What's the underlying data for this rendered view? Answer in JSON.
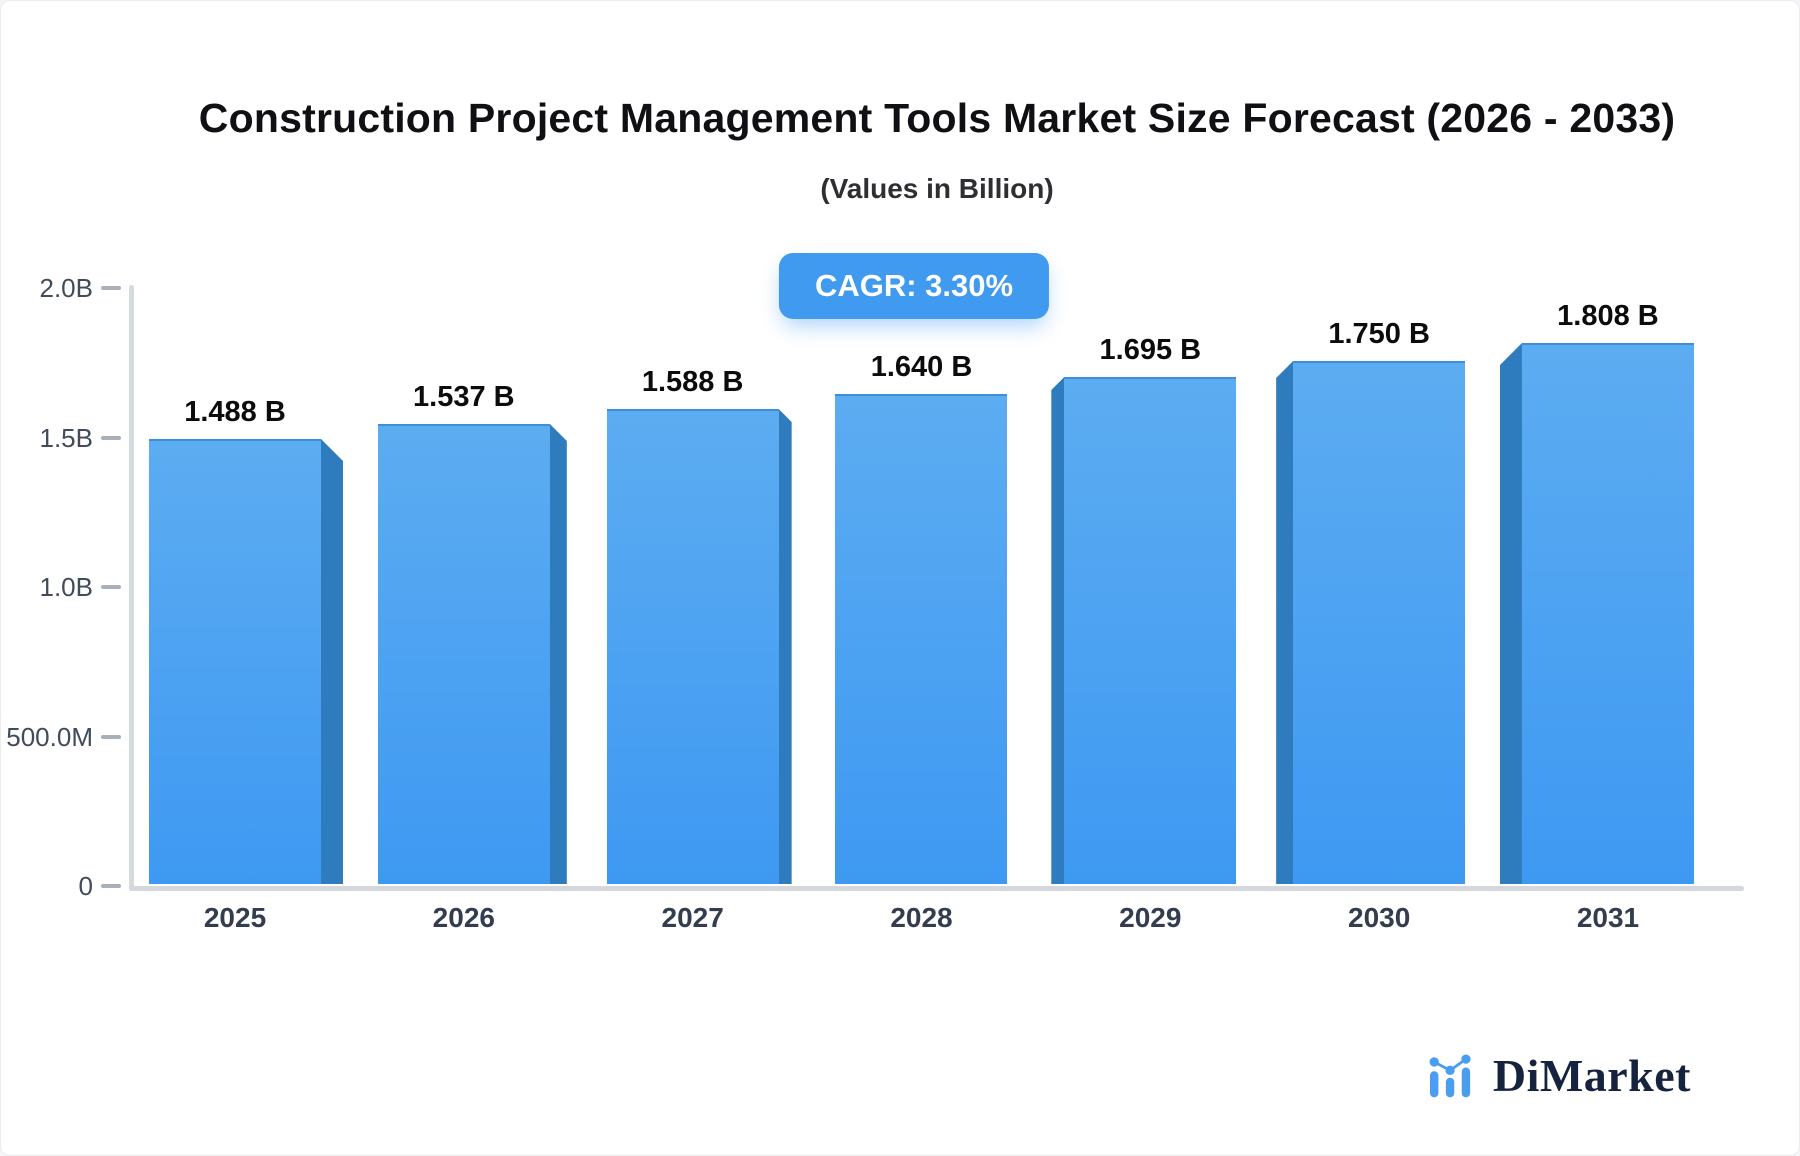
{
  "title": "Construction Project Management Tools Market Size Forecast (2026 - 2033)",
  "subtitle": "(Values in Billion)",
  "badge": {
    "label": "CAGR: 3.30%",
    "bg": "#3f9af0",
    "text_color": "#ffffff"
  },
  "chart_data": {
    "type": "bar",
    "title": "Construction Project Management Tools Market Size Forecast (2026 - 2033)",
    "subtitle": "(Values in Billion)",
    "xlabel": "",
    "ylabel": "",
    "unit": "Billion",
    "categories": [
      "2025",
      "2026",
      "2027",
      "2028",
      "2029",
      "2030",
      "2031"
    ],
    "values": [
      1.488,
      1.537,
      1.588,
      1.64,
      1.695,
      1.75,
      1.808
    ],
    "value_labels": [
      "1.488 B",
      "1.537 B",
      "1.588 B",
      "1.640 B",
      "1.695 B",
      "1.750 B",
      "1.808 B"
    ],
    "ylim": [
      0,
      2.0
    ],
    "yticks": [
      {
        "label": "2.0B",
        "value": 2.0
      },
      {
        "label": "1.5B",
        "value": 1.5
      },
      {
        "label": "1.0B",
        "value": 1.0
      },
      {
        "label": "500.0M",
        "value": 0.5
      },
      {
        "label": "0",
        "value": 0
      }
    ],
    "grid": false,
    "legend": "none",
    "bar_color_top": "#5cacf1",
    "bar_color_bottom": "#3e99f2",
    "bar_edge_color": "#2e7cbe",
    "bevel": [
      {
        "side": "right",
        "w": 22
      },
      {
        "side": "right",
        "w": 17
      },
      {
        "side": "right",
        "w": 13
      },
      {
        "side": "none",
        "w": 0
      },
      {
        "side": "left",
        "w": 13
      },
      {
        "side": "left",
        "w": 17
      },
      {
        "side": "left",
        "w": 22
      }
    ]
  },
  "logo": {
    "brand": "DiMarket",
    "icon": "mini-bar-chart-logo-icon",
    "text_color": "#16233e",
    "icon_color": "#4b9df2"
  }
}
